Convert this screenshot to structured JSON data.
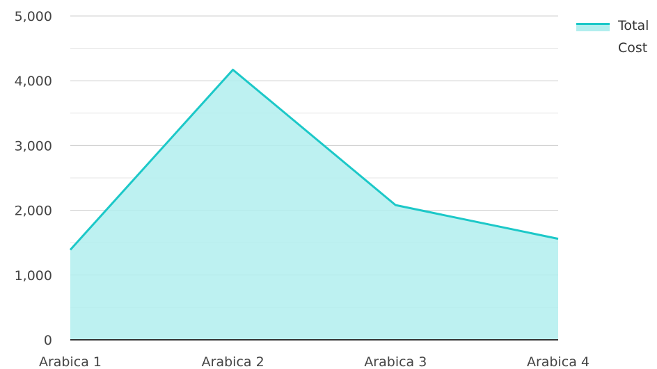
{
  "chart_data": {
    "type": "area",
    "categories": [
      "Arabica 1",
      "Arabica 2",
      "Arabica 3",
      "Arabica 4"
    ],
    "series": [
      {
        "name": "Total Cost",
        "values": [
          1390,
          4170,
          2080,
          1560
        ]
      }
    ],
    "y_ticks": [
      "0",
      "1,000",
      "2,000",
      "3,000",
      "4,000",
      "5,000"
    ],
    "ylim": [
      0,
      5000
    ],
    "grid": true,
    "legend": {
      "position": "top-right",
      "label_line1": "Total",
      "label_line2": "Cost"
    },
    "colors": {
      "line": "#1cc8c8",
      "fill": "#b2eeee",
      "grid": "#cccccc",
      "minor_grid": "#e6e6e6",
      "axis": "#333333"
    }
  }
}
